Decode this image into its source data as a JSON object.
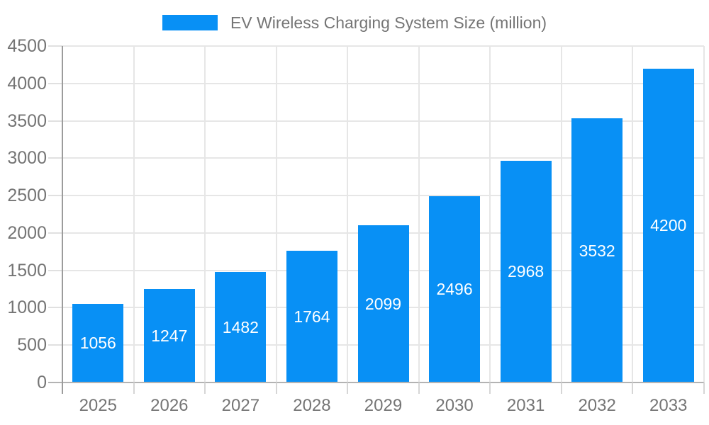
{
  "chart_data": {
    "type": "bar",
    "title": "",
    "series_name": "EV Wireless Charging System Size (million)",
    "categories": [
      "2025",
      "2026",
      "2027",
      "2028",
      "2029",
      "2030",
      "2031",
      "2032",
      "2033"
    ],
    "values": [
      1056,
      1247,
      1482,
      1764,
      2099,
      2496,
      2968,
      3532,
      4200
    ],
    "xlabel": "",
    "ylabel": "",
    "ylim": [
      0,
      4500
    ],
    "ytick_step": 500,
    "grid": true,
    "legend_position": "top",
    "colors": {
      "bar": "#0890F5",
      "value_label": "#FFFFFF",
      "axis_text": "#757575",
      "gridline": "#E6E6E6",
      "axis_line": "#9C9C9C",
      "baseline": "#B3B3B3"
    }
  }
}
